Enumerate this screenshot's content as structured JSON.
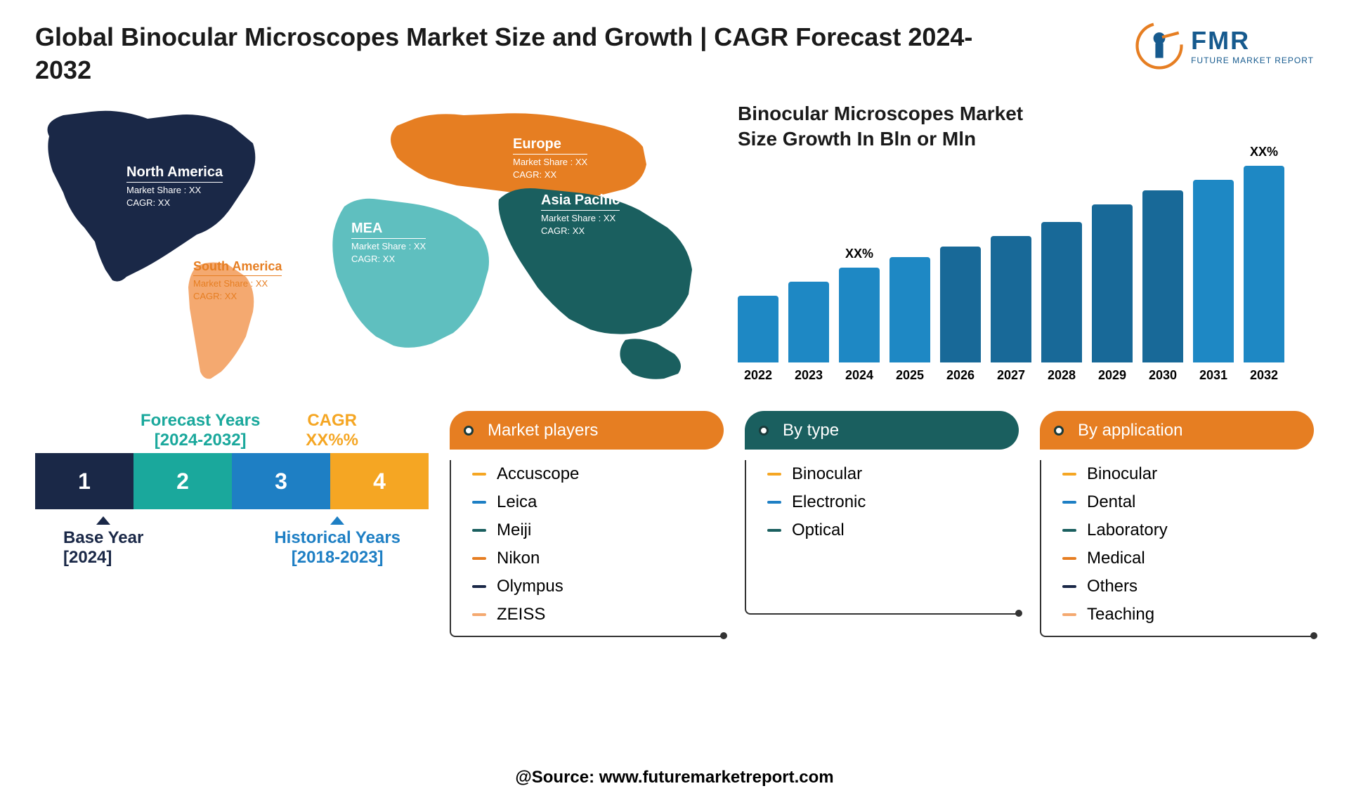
{
  "title": "Global Binocular Microscopes Market Size and Growth | CAGR Forecast 2024-2032",
  "logo": {
    "fmr": "FMR",
    "sub": "FUTURE MARKET REPORT"
  },
  "map": {
    "regions": [
      {
        "id": "na",
        "name": "North America",
        "share": "Market Share : XX",
        "cagr": "CAGR: XX",
        "color": "#1a2847"
      },
      {
        "id": "sa",
        "name": "South America",
        "share": "Market Share : XX",
        "cagr": "CAGR: XX",
        "color": "#f4a970"
      },
      {
        "id": "eu",
        "name": "Europe",
        "share": "Market Share : XX",
        "cagr": "CAGR: XX",
        "color": "#e67e22"
      },
      {
        "id": "mea",
        "name": "MEA",
        "share": "Market Share : XX",
        "cagr": "CAGR: XX",
        "color": "#5fbfbf"
      },
      {
        "id": "ap",
        "name": "Asia Pacific",
        "share": "Market Share : XX",
        "cagr": "CAGR: XX",
        "color": "#1a5f5f"
      }
    ]
  },
  "chart": {
    "title": "Binocular Microscopes Market Size Growth In Bln or Mln",
    "years": [
      "2022",
      "2023",
      "2024",
      "2025",
      "2026",
      "2027",
      "2028",
      "2029",
      "2030",
      "2031",
      "2032"
    ],
    "values": [
      95,
      115,
      135,
      150,
      165,
      180,
      200,
      225,
      245,
      260,
      280
    ],
    "annotations": {
      "2": "XX%",
      "10": "XX%"
    },
    "bar_color": "#1e88c4",
    "bar_color_alt": "#186998"
  },
  "timeline": {
    "forecast": {
      "label": "Forecast Years",
      "range": "[2024-2032]",
      "color": "#1aa89c"
    },
    "cagr": {
      "label": "CAGR",
      "value": "XX%%",
      "color": "#f5a623"
    },
    "base": {
      "label": "Base Year",
      "range": "[2024]",
      "color": "#1a2847"
    },
    "historical": {
      "label": "Historical Years",
      "range": "[2018-2023]",
      "color": "#1e7fc4"
    },
    "boxes": [
      {
        "num": "1",
        "color": "#1a2847"
      },
      {
        "num": "2",
        "color": "#1aa89c"
      },
      {
        "num": "3",
        "color": "#1e7fc4"
      },
      {
        "num": "4",
        "color": "#f5a623"
      }
    ]
  },
  "categories": [
    {
      "title": "Market players",
      "header_color": "#e67e22",
      "items": [
        {
          "label": "Accuscope",
          "dash": "#f5a623"
        },
        {
          "label": "Leica",
          "dash": "#1e7fc4"
        },
        {
          "label": "Meiji",
          "dash": "#1a5f5f"
        },
        {
          "label": "Nikon",
          "dash": "#e67e22"
        },
        {
          "label": "Olympus",
          "dash": "#1a2847"
        },
        {
          "label": "ZEISS",
          "dash": "#f4a970"
        }
      ]
    },
    {
      "title": "By type",
      "header_color": "#1a5f5f",
      "items": [
        {
          "label": "Binocular",
          "dash": "#f5a623"
        },
        {
          "label": "Electronic",
          "dash": "#1e7fc4"
        },
        {
          "label": "Optical",
          "dash": "#1a5f5f"
        }
      ]
    },
    {
      "title": "By application",
      "header_color": "#e67e22",
      "items": [
        {
          "label": "Binocular",
          "dash": "#f5a623"
        },
        {
          "label": "Dental",
          "dash": "#1e7fc4"
        },
        {
          "label": "Laboratory",
          "dash": "#1a5f5f"
        },
        {
          "label": "Medical",
          "dash": "#e67e22"
        },
        {
          "label": "Others",
          "dash": "#1a2847"
        },
        {
          "label": "Teaching",
          "dash": "#f4a970"
        }
      ]
    }
  ],
  "source": "@Source: www.futuremarketreport.com"
}
